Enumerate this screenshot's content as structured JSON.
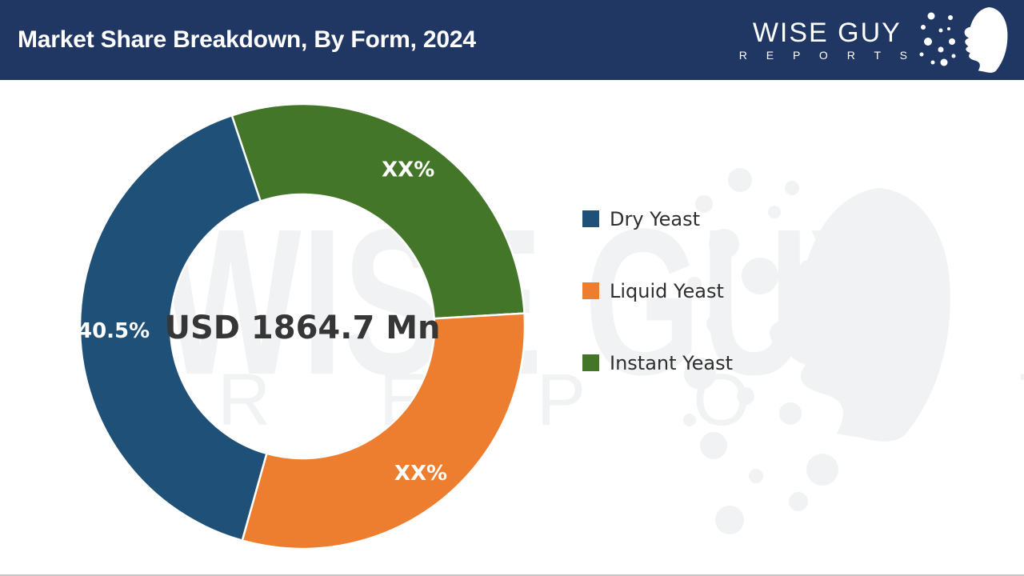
{
  "header": {
    "title": "Market Share Breakdown, By Form, 2024",
    "logo": {
      "line1": "WISE GUY",
      "line2": "R E P O R T S"
    }
  },
  "watermark": {
    "line1": "WISE GUY",
    "line2": "R E P O R T S"
  },
  "chart_data": {
    "type": "pie",
    "subtype": "donut",
    "title": "Market Share Breakdown, By Form, 2024",
    "center_label": "USD 1864.7 Mn",
    "unit": "%",
    "start_angle": -18.5,
    "legend_position": "right",
    "segments": [
      {
        "name": "Instant Yeast",
        "label": "XX%",
        "value_pct": 29.2,
        "color": "#44762a"
      },
      {
        "name": "Liquid Yeast",
        "label": "XX%",
        "value_pct": 30.3,
        "color": "#ed7d2f"
      },
      {
        "name": "Dry Yeast",
        "label": "40.5%",
        "value_pct": 40.5,
        "color": "#1f5078"
      }
    ],
    "legend": [
      {
        "label": "Dry Yeast",
        "color": "#1f5078"
      },
      {
        "label": "Liquid Yeast",
        "color": "#ed7d2f"
      },
      {
        "label": "Instant Yeast",
        "color": "#44762a"
      }
    ]
  },
  "colors": {
    "header_bg": "#203764",
    "watermark": "#f1f2f4",
    "center_text": "#363636",
    "legend_text": "#2e2e2e",
    "bottom_border": "#c8c8c8"
  }
}
